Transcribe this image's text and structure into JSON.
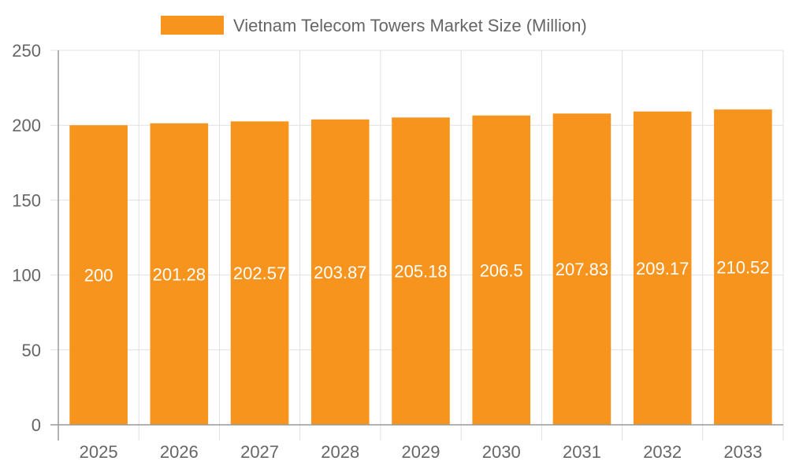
{
  "chart_data": {
    "type": "bar",
    "categories": [
      "2025",
      "2026",
      "2027",
      "2028",
      "2029",
      "2030",
      "2031",
      "2032",
      "2033"
    ],
    "series": [
      {
        "name": "Vietnam Telecom Towers Market Size (Million)",
        "values": [
          200,
          201.28,
          202.57,
          203.87,
          205.18,
          206.5,
          207.83,
          209.17,
          210.52
        ],
        "color": "#f7941e"
      }
    ],
    "ylim": [
      0,
      250
    ],
    "yticks": [
      0,
      50,
      100,
      150,
      200,
      250
    ],
    "grid": true,
    "legend_position": "top",
    "data_labels": true,
    "data_label_color": "#ffffff"
  }
}
